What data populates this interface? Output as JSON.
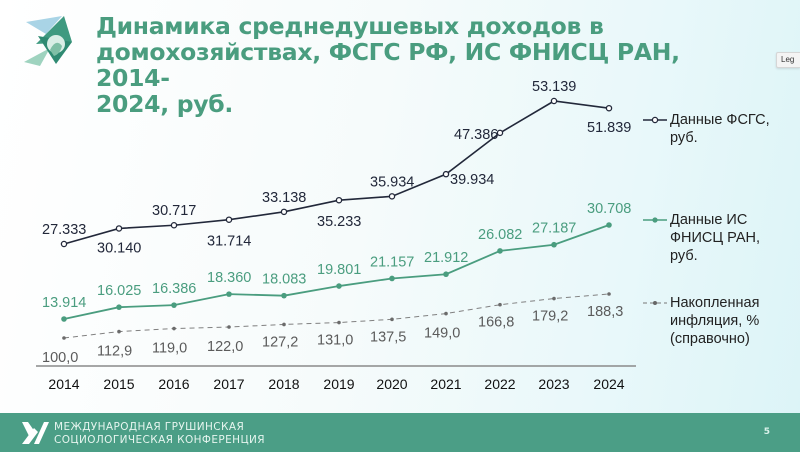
{
  "slide": {
    "title": "Динамика среднедушевых доходов в домохозяйствах, ФСГС РФ, ИС ФНИСЦ РАН, 2014-2024, руб.",
    "title_lines": [
      "Динамика среднедушевых доходов в",
      "домохозяйствах, ФСГС РФ, ИС ФНИСЦ РАН, 2014-",
      "2024, руб."
    ],
    "legend_tab": "Leg",
    "page_number": "5",
    "colors": {
      "title": "#4a9d7f",
      "fsgs": "#22283a",
      "fnisc": "#4a9d7f",
      "inflation": "#6b6b6b",
      "footer": "#4b9e86"
    }
  },
  "footer": {
    "line1": "МЕЖДУНАРОДНАЯ ГРУШИНСКАЯ",
    "line2": "СОЦИОЛОГИЧЕСКАЯ КОНФЕРЕНЦИЯ"
  },
  "legend": [
    {
      "lines": [
        "Данные ФСГС,",
        "руб."
      ],
      "marker": "open-circle-line"
    },
    {
      "lines": [
        "Данные ИС",
        "ФНИСЦ РАН,",
        "руб."
      ],
      "marker": "filled-dot-line"
    },
    {
      "lines": [
        "Накопленная",
        "инфляция, %",
        "(справочно)"
      ],
      "marker": "dashed-dot-line"
    }
  ],
  "chart_data": {
    "type": "line",
    "title": "Динамика среднедушевых доходов в домохозяйствах, ФСГС РФ, ИС ФНИСЦ РАН, 2014-2024, руб.",
    "xlabel": "",
    "ylabel": "",
    "grid": false,
    "legend_position": "right",
    "categories": [
      "2014",
      "2015",
      "2016",
      "2017",
      "2018",
      "2019",
      "2020",
      "2021",
      "2022",
      "2023",
      "2024"
    ],
    "series": [
      {
        "name": "Данные ФСГС, руб.",
        "values": [
          27333,
          30140,
          30717,
          31714,
          33138,
          35233,
          35934,
          39934,
          47386,
          53139,
          51839
        ],
        "labels": [
          "27.333",
          "30.140",
          "30.717",
          "31.714",
          "33.138",
          "35.233",
          "35.934",
          "39.934",
          "47.386",
          "53.139",
          "51.839"
        ]
      },
      {
        "name": "Данные ИС ФНИСЦ РАН, руб.",
        "values": [
          13914,
          16025,
          16386,
          18360,
          18083,
          19801,
          21157,
          21912,
          26082,
          27187,
          30708
        ],
        "labels": [
          "13.914",
          "16.025",
          "16.386",
          "18.360",
          "18.083",
          "19.801",
          "21.157",
          "21.912",
          "26.082",
          "27.187",
          "30.708"
        ]
      },
      {
        "name": "Накопленная инфляция, % (справочно)",
        "values": [
          100.0,
          112.9,
          119.0,
          122.0,
          127.2,
          131.0,
          137.5,
          149.0,
          166.8,
          179.2,
          188.3
        ],
        "labels": [
          "100,0",
          "112,9",
          "119,0",
          "122,0",
          "127,2",
          "131,0",
          "137,5",
          "149,0",
          "166,8",
          "179,2",
          "188,3"
        ]
      }
    ]
  }
}
